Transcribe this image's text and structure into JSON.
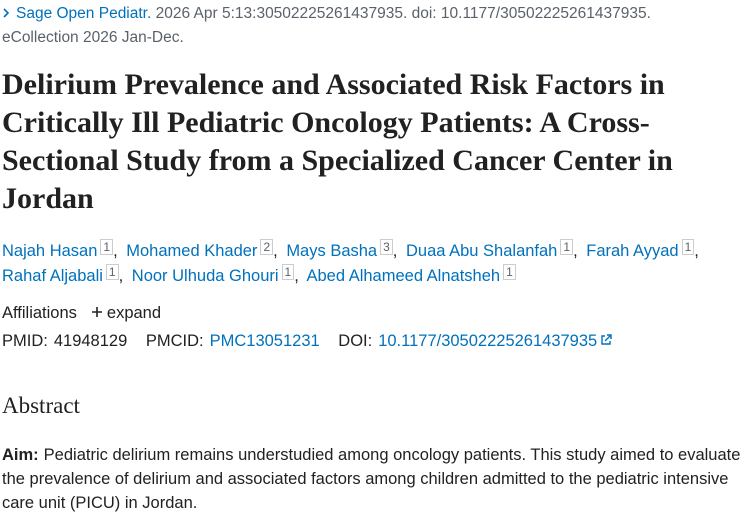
{
  "citation": {
    "journal": "Sage Open Pediatr.",
    "details": "2026 Apr 5:13:30502225261437935. doi: 10.1177/30502225261437935.",
    "ecollection": "eCollection 2026 Jan-Dec."
  },
  "title": "Delirium Prevalence and Associated Risk Factors in Critically Ill Pediatric Oncology Patients: A Cross-Sectional Study from a Specialized Cancer Center in Jordan",
  "authors": [
    {
      "name": "Najah Hasan",
      "sup": "1"
    },
    {
      "name": "Mohamed Khader",
      "sup": "2"
    },
    {
      "name": "Mays Basha",
      "sup": "3"
    },
    {
      "name": "Duaa Abu Shalanfah",
      "sup": "1"
    },
    {
      "name": "Farah Ayyad",
      "sup": "1"
    },
    {
      "name": "Rahaf Aljabali",
      "sup": "1"
    },
    {
      "name": "Noor Ulhuda Ghouri",
      "sup": "1"
    },
    {
      "name": "Abed Alhameed Alnatsheh",
      "sup": "1"
    }
  ],
  "affiliations": {
    "label": "Affiliations",
    "toggle": "expand"
  },
  "identifiers": {
    "pmid_label": "PMID:",
    "pmid": "41948129",
    "pmcid_label": "PMCID:",
    "pmcid": "PMC13051231",
    "doi_label": "DOI:",
    "doi": "10.1177/30502225261437935"
  },
  "abstract": {
    "heading": "Abstract",
    "label": "Aim:",
    "text": "Pediatric delirium remains understudied among oncology patients. This study aimed to evaluate the prevalence of delirium and associated factors among children admitted to the pediatric intensive care unit (PICU) in Jordan."
  }
}
